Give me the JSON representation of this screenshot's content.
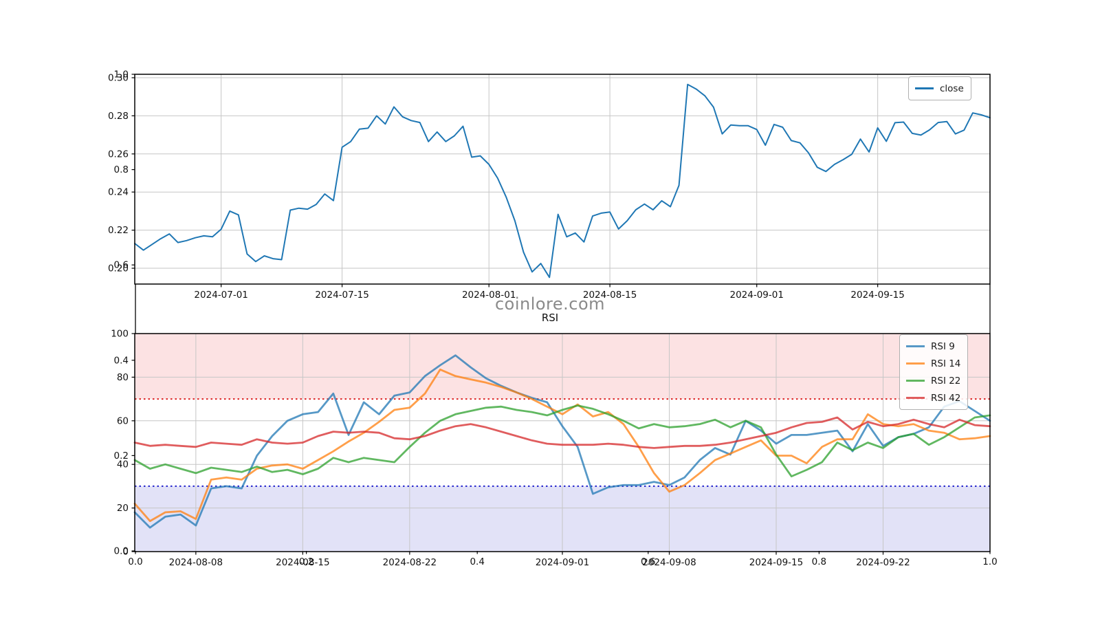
{
  "watermark": "coinlore.com",
  "background_axis": {
    "x_labels": [
      "0.0",
      "0.2",
      "0.4",
      "0.6",
      "0.8",
      "1.0"
    ],
    "y_labels": [
      "1.0",
      "0.8",
      "0.6",
      "0.4",
      "0.2",
      "0.0"
    ]
  },
  "chart_data": [
    {
      "type": "line",
      "title": "",
      "legend_position": "upper right",
      "grid": true,
      "start_date": "2024-06-21",
      "freq": "daily",
      "ylim": [
        0.1918,
        0.3018
      ],
      "x_tick_labels": [
        {
          "label": "2024-07-01",
          "index": 10
        },
        {
          "label": "2024-07-15",
          "index": 24
        },
        {
          "label": "2024-08-01",
          "index": 41
        },
        {
          "label": "2024-08-15",
          "index": 55
        },
        {
          "label": "2024-09-01",
          "index": 72
        },
        {
          "label": "2024-09-15",
          "index": 86
        }
      ],
      "y_ticks": [
        {
          "label": "0.30",
          "value": 0.3
        },
        {
          "label": "0.28",
          "value": 0.28
        },
        {
          "label": "0.26",
          "value": 0.26
        },
        {
          "label": "0.24",
          "value": 0.24
        },
        {
          "label": "0.22",
          "value": 0.22
        },
        {
          "label": "0.20",
          "value": 0.2
        }
      ],
      "series": [
        {
          "name": "close",
          "color": "#1f77b4",
          "width": 2,
          "values": [
            0.213,
            0.2095,
            0.2125,
            0.2155,
            0.218,
            0.2135,
            0.2145,
            0.216,
            0.217,
            0.2165,
            0.2205,
            0.23,
            0.228,
            0.2075,
            0.2035,
            0.2065,
            0.205,
            0.2045,
            0.2305,
            0.2315,
            0.231,
            0.2335,
            0.239,
            0.2355,
            0.2635,
            0.2665,
            0.273,
            0.2735,
            0.28,
            0.2757,
            0.2847,
            0.2795,
            0.2775,
            0.2765,
            0.2665,
            0.2715,
            0.2665,
            0.2695,
            0.2745,
            0.2583,
            0.259,
            0.2545,
            0.2473,
            0.2373,
            0.2249,
            0.2084,
            0.1981,
            0.2025,
            0.1952,
            0.2283,
            0.2165,
            0.2185,
            0.2138,
            0.2274,
            0.2289,
            0.2295,
            0.2206,
            0.2249,
            0.2307,
            0.2337,
            0.2307,
            0.2354,
            0.2323,
            0.2435,
            0.2965,
            0.294,
            0.2905,
            0.2845,
            0.2705,
            0.2752,
            0.2748,
            0.2748,
            0.2728,
            0.2646,
            0.2755,
            0.274,
            0.267,
            0.2658,
            0.2605,
            0.253,
            0.2508,
            0.2545,
            0.257,
            0.2598,
            0.2678,
            0.261,
            0.2737,
            0.2666,
            0.2764,
            0.2767,
            0.2708,
            0.2699,
            0.2726,
            0.2765,
            0.277,
            0.2705,
            0.2725,
            0.2815,
            0.2805,
            0.279
          ]
        }
      ]
    },
    {
      "type": "line",
      "title": "RSI",
      "legend_position": "upper right",
      "grid": true,
      "start_date": "2024-08-04",
      "freq": "daily",
      "ylim": [
        0,
        100
      ],
      "thresholds": {
        "overbought": 70,
        "oversold": 30,
        "overbought_line_color": "#dd2222",
        "oversold_line_color": "#2222cc",
        "overbought_band_color": "rgba(230,30,40,0.13)",
        "oversold_band_color": "rgba(50,50,200,0.14)"
      },
      "x_tick_labels": [
        {
          "label": "2024-08-08",
          "index": 4
        },
        {
          "label": "2024-08-15",
          "index": 11
        },
        {
          "label": "2024-08-22",
          "index": 18
        },
        {
          "label": "2024-09-01",
          "index": 28
        },
        {
          "label": "2024-09-08",
          "index": 35
        },
        {
          "label": "2024-09-15",
          "index": 42
        },
        {
          "label": "2024-09-22",
          "index": 49
        }
      ],
      "y_ticks": [
        {
          "label": "100",
          "value": 100
        },
        {
          "label": "80",
          "value": 80
        },
        {
          "label": "60",
          "value": 60
        },
        {
          "label": "40",
          "value": 40
        },
        {
          "label": "20",
          "value": 20
        },
        {
          "label": "0",
          "value": 0
        }
      ],
      "series": [
        {
          "name": "RSI 9",
          "color": "rgba(31,119,180,0.75)",
          "width": 2.8,
          "values": [
            18,
            11,
            16,
            17,
            12,
            29,
            30,
            29,
            44,
            53,
            60,
            63,
            64,
            72.5,
            53.5,
            68.5,
            63,
            71.5,
            73,
            80.5,
            85.5,
            90,
            84.5,
            79.5,
            76,
            73,
            70.5,
            68.5,
            57.5,
            48,
            26.5,
            29.5,
            30.5,
            30.5,
            32,
            30.5,
            34,
            42,
            47.5,
            44.5,
            60,
            55.5,
            49.5,
            53.5,
            53.5,
            54.5,
            55.5,
            46,
            58.5,
            48.5,
            52.5,
            54,
            57,
            66.5,
            69,
            64.5,
            60
          ]
        },
        {
          "name": "RSI 14",
          "color": "rgba(255,127,14,0.75)",
          "width": 2.8,
          "values": [
            22,
            14,
            18,
            18.5,
            15,
            33,
            34,
            33,
            38,
            39.5,
            40,
            38,
            42,
            46,
            50.5,
            54.5,
            59.5,
            65,
            66,
            72.5,
            83.5,
            80.5,
            79,
            77.5,
            75.5,
            73,
            70,
            66.5,
            63,
            67.5,
            62,
            64,
            58.5,
            48,
            36,
            27.5,
            30.5,
            36,
            42,
            45,
            48,
            51,
            44,
            44,
            40.5,
            48,
            51.5,
            51.5,
            63,
            58.5,
            57.5,
            58.5,
            55.5,
            54.5,
            51.5,
            52,
            53
          ]
        },
        {
          "name": "RSI 22",
          "color": "rgba(44,160,44,0.75)",
          "width": 2.8,
          "values": [
            42,
            38,
            40,
            38,
            36,
            38.5,
            37.5,
            36.5,
            39,
            36.5,
            37.5,
            35.5,
            38,
            43,
            41,
            43,
            42,
            41,
            48,
            54.5,
            60,
            63,
            64.5,
            66,
            66.5,
            65,
            64,
            62.5,
            65,
            67,
            65.5,
            63,
            60,
            56.5,
            58.5,
            57,
            57.5,
            58.5,
            60.5,
            57,
            60,
            57,
            44.5,
            34.5,
            37.5,
            41,
            50,
            46.5,
            50,
            47.5,
            52.5,
            54,
            49,
            52.5,
            57,
            61.5,
            62.5
          ]
        },
        {
          "name": "RSI 42",
          "color": "rgba(214,39,40,0.75)",
          "width": 2.8,
          "values": [
            50,
            48.5,
            49,
            48.5,
            48,
            50,
            49.5,
            49,
            51.5,
            50,
            49.5,
            50,
            53,
            55,
            54.5,
            55,
            54.5,
            52,
            51.5,
            53,
            55.5,
            57.5,
            58.5,
            57,
            55,
            53,
            51,
            49.5,
            49,
            49,
            49,
            49.5,
            49,
            48,
            47.5,
            48,
            48.5,
            48.5,
            49,
            50,
            51.5,
            53,
            54.5,
            57,
            59,
            59.5,
            61.5,
            56,
            59.5,
            57.5,
            58.5,
            60.5,
            58.5,
            57,
            60.5,
            58,
            57.5
          ]
        }
      ]
    }
  ]
}
